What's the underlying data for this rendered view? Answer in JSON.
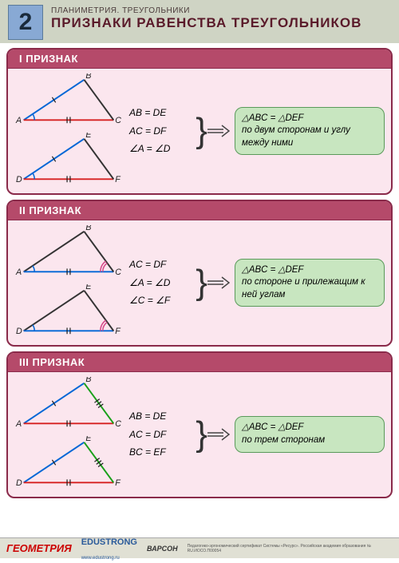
{
  "header": {
    "number": "2",
    "subtitle": "ПЛАНИМЕТРИЯ. ТРЕУГОЛЬНИКИ",
    "title": "ПРИЗНАКИ РАВЕНСТВА ТРЕУГОЛЬНИКОВ"
  },
  "colors": {
    "side_blue": "#0066d6",
    "side_red": "#d62020",
    "side_green": "#1aa01a",
    "angle_blue": "#0066d6",
    "angle_pink": "#d64a8a",
    "tick": "#1a1a1a",
    "vertex": "#1a1a1a",
    "bg_section": "#fbe6ee",
    "bg_header": "#b54a6a",
    "bg_result": "#c8e6c0",
    "border_result": "#5a9a5a",
    "arrow": "#444444"
  },
  "triangles": {
    "abc": {
      "A": "A",
      "B": "B",
      "C": "C"
    },
    "def": {
      "D": "D",
      "E": "E",
      "F": "F"
    }
  },
  "sections": [
    {
      "label": "I ПРИЗНАК",
      "equations": [
        "AB = DE",
        "AC = DF",
        "∠A = ∠D"
      ],
      "result_congr": "△ABC = △DEF",
      "result_text": "по двум сторонам и углу между ними",
      "style": {
        "sides": {
          "AB": "side_blue",
          "AC": "side_red",
          "BC": "plain"
        },
        "ticks": {
          "AB": 1,
          "AC": 2
        },
        "angles": {
          "A": "angle_blue"
        }
      }
    },
    {
      "label": "II ПРИЗНАК",
      "equations": [
        "AC = DF",
        "∠A = ∠D",
        "∠C = ∠F"
      ],
      "result_congr": "△ABC = △DEF",
      "result_text": "по стороне и прилежащим к ней углам",
      "style": {
        "sides": {
          "AB": "plain",
          "AC": "side_blue",
          "BC": "plain"
        },
        "ticks": {
          "AC": 2
        },
        "angles": {
          "A": "angle_blue",
          "C": "angle_pink"
        }
      }
    },
    {
      "label": "III ПРИЗНАК",
      "equations": [
        "AB = DE",
        "AC = DF",
        "BC = EF"
      ],
      "result_congr": "△ABC = △DEF",
      "result_text": "по трем сторонам",
      "style": {
        "sides": {
          "AB": "side_blue",
          "AC": "side_red",
          "BC": "side_green"
        },
        "ticks": {
          "AB": 1,
          "AC": 2,
          "BC": 3
        }
      }
    }
  ],
  "footer": {
    "brand1": "ГЕОМЕТРИЯ",
    "brand2": "EDUSTRONG",
    "brand2_sub": "www.edustrong.ru",
    "brand3": "ВАРСОН",
    "fineprint": "Педагогико-эргономический сертификат Системы «Ресурс». Российская академия образования № RU.ИОСО.П00054"
  }
}
